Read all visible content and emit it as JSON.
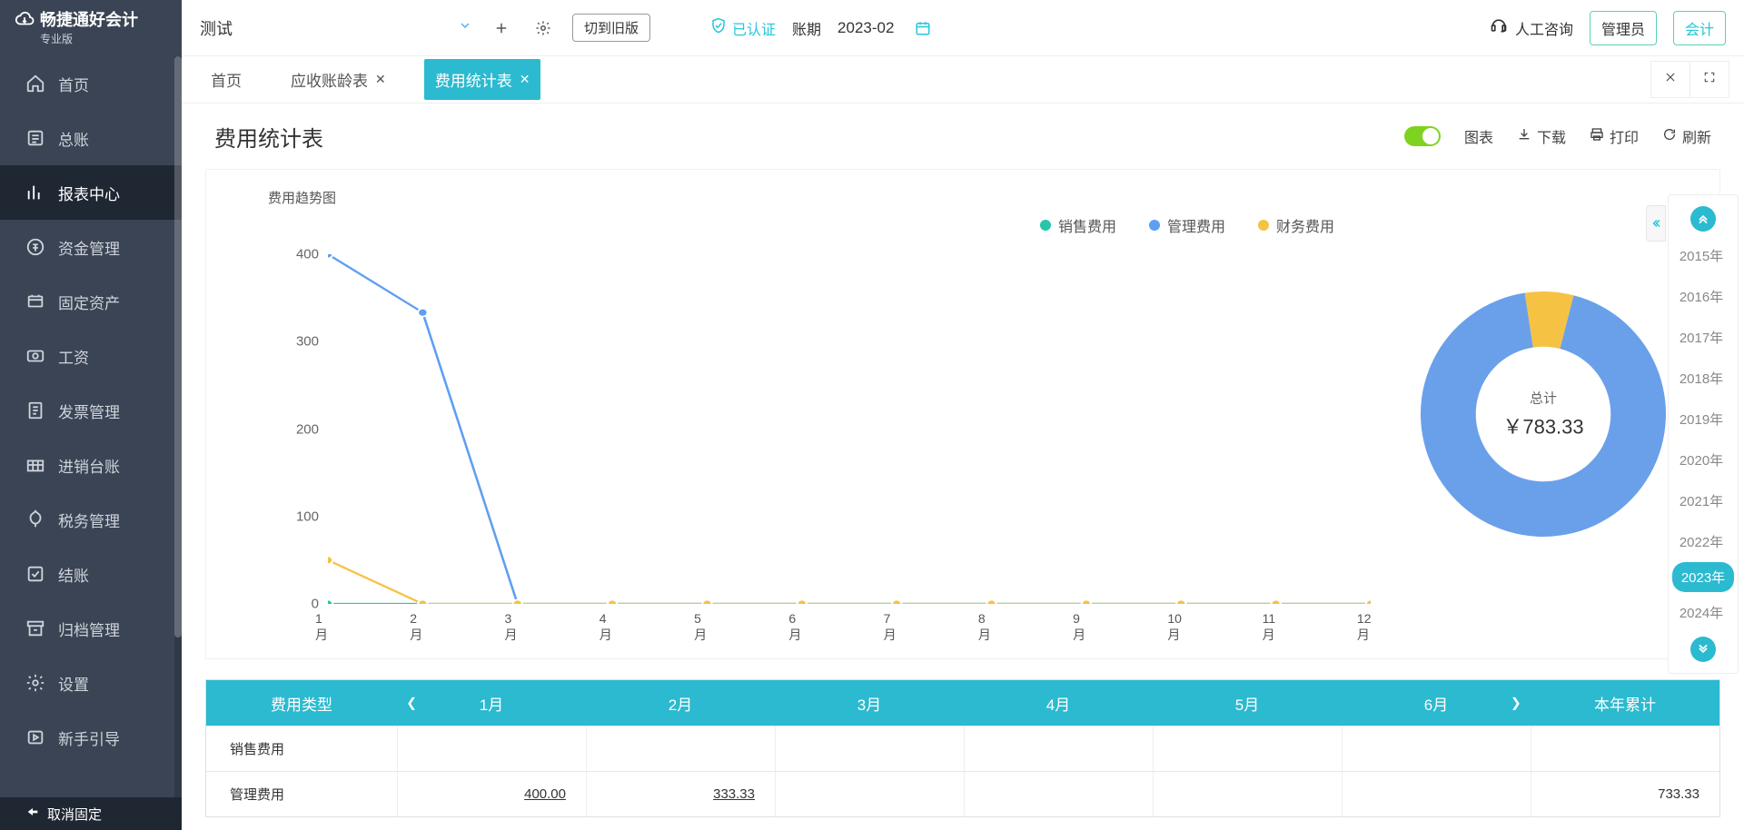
{
  "brand": {
    "name": "畅捷通好会计",
    "edition": "专业版"
  },
  "entity": {
    "name": "测试"
  },
  "topbar": {
    "old_version": "切到旧版",
    "verified": "已认证",
    "period_label": "账期",
    "period_value": "2023-02",
    "consult": "人工咨询",
    "role_admin": "管理员",
    "role_acct": "会计"
  },
  "nav": [
    {
      "icon": "home",
      "label": "首页"
    },
    {
      "icon": "ledger",
      "label": "总账"
    },
    {
      "icon": "report",
      "label": "报表中心",
      "active": true
    },
    {
      "icon": "fund",
      "label": "资金管理"
    },
    {
      "icon": "asset",
      "label": "固定资产"
    },
    {
      "icon": "salary",
      "label": "工资"
    },
    {
      "icon": "invoice",
      "label": "发票管理"
    },
    {
      "icon": "psi",
      "label": "进销台账"
    },
    {
      "icon": "tax",
      "label": "税务管理"
    },
    {
      "icon": "close",
      "label": "结账"
    },
    {
      "icon": "archive",
      "label": "归档管理"
    },
    {
      "icon": "settings",
      "label": "设置"
    },
    {
      "icon": "guide",
      "label": "新手引导"
    }
  ],
  "unpin": "取消固定",
  "tabs": {
    "items": [
      {
        "label": "首页",
        "closable": false
      },
      {
        "label": "应收账龄表",
        "closable": true
      },
      {
        "label": "费用统计表",
        "closable": true,
        "active": true
      }
    ]
  },
  "page": {
    "title": "费用统计表",
    "toggle_label": "图表",
    "download": "下载",
    "print": "打印",
    "refresh": "刷新"
  },
  "chart": {
    "subtitle": "费用趋势图",
    "type": "line",
    "legend": [
      {
        "key": "sales",
        "label": "销售费用",
        "color": "#26c6a8"
      },
      {
        "key": "mgmt",
        "label": "管理费用",
        "color": "#5e9ff2"
      },
      {
        "key": "fin",
        "label": "财务费用",
        "color": "#f6c243"
      }
    ],
    "x_labels": [
      "1月",
      "2月",
      "3月",
      "4月",
      "5月",
      "6月",
      "7月",
      "8月",
      "9月",
      "10月",
      "11月",
      "12月"
    ],
    "y_ticks": [
      0,
      100,
      200,
      300,
      400
    ],
    "ylim": [
      0,
      400
    ],
    "series": {
      "sales": [
        0,
        0,
        0,
        0,
        0,
        0,
        0,
        0,
        0,
        0,
        0,
        0
      ],
      "mgmt": [
        400,
        333.33,
        0,
        0,
        0,
        0,
        0,
        0,
        0,
        0,
        0,
        0
      ],
      "fin": [
        50,
        0,
        0,
        0,
        0,
        0,
        0,
        0,
        0,
        0,
        0,
        0
      ]
    },
    "line_width": 2,
    "marker_radius": 4,
    "grid_color": "#f3f3f3",
    "marker_stroke": "#ffffff"
  },
  "donut": {
    "type": "pie",
    "label": "总计",
    "total": "￥783.33",
    "inner_ratio": 0.55,
    "segments": [
      {
        "key": "mgmt",
        "value": 733.33,
        "color": "#6aa0ea"
      },
      {
        "key": "fin",
        "value": 50,
        "color": "#f6c243"
      },
      {
        "key": "sales",
        "value": 0,
        "color": "#26c6a8"
      }
    ]
  },
  "years": {
    "items": [
      "2015年",
      "2016年",
      "2017年",
      "2018年",
      "2019年",
      "2020年",
      "2021年",
      "2022年",
      "2023年",
      "2024年"
    ],
    "active": "2023年"
  },
  "table": {
    "type_header": "费用类型",
    "month_headers": [
      "1月",
      "2月",
      "3月",
      "4月",
      "5月",
      "6月"
    ],
    "ytd_header": "本年累计",
    "rows": [
      {
        "type": "销售费用",
        "cells": [
          "",
          "",
          "",
          "",
          "",
          ""
        ],
        "ytd": ""
      },
      {
        "type": "管理费用",
        "cells": [
          "400.00",
          "333.33",
          "",
          "",
          "",
          ""
        ],
        "ytd": "733.33"
      }
    ]
  }
}
